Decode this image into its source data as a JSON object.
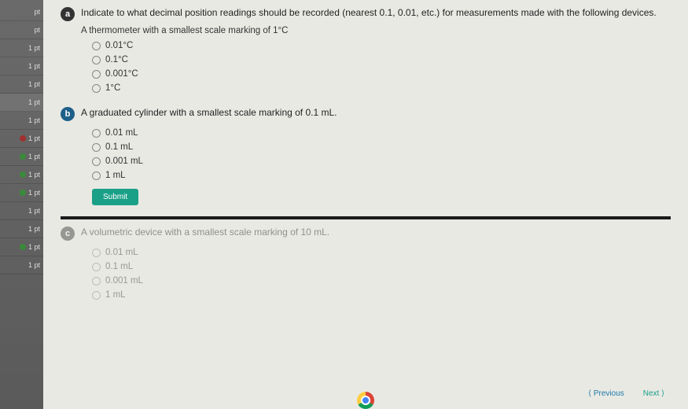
{
  "sidebar": {
    "items": [
      {
        "label": "pt"
      },
      {
        "label": "pt"
      },
      {
        "label": "1 pt"
      },
      {
        "label": "1 pt"
      },
      {
        "label": "1 pt"
      },
      {
        "label": "1 pt"
      },
      {
        "label": "1 pt"
      },
      {
        "label": "1 pt",
        "status": "red"
      },
      {
        "label": "1 pt",
        "status": "green"
      },
      {
        "label": "1 pt",
        "status": "green"
      },
      {
        "label": "1 pt",
        "status": "green"
      },
      {
        "label": "1 pt"
      },
      {
        "label": "1 pt"
      },
      {
        "label": "1 pt",
        "status": "green"
      },
      {
        "label": "1 pt"
      }
    ]
  },
  "partA": {
    "badge": "a",
    "prompt": "Indicate to what decimal position readings should be recorded (nearest 0.1, 0.01, etc.) for measurements made with the following devices.",
    "subprompt": "A thermometer with a smallest scale marking of 1°C",
    "options": [
      "0.01°C",
      "0.1°C",
      "0.001°C",
      "1°C"
    ]
  },
  "partB": {
    "badge": "b",
    "prompt": "A graduated cylinder with a smallest scale marking of 0.1 mL.",
    "options": [
      "0.01 mL",
      "0.1 mL",
      "0.001 mL",
      "1 mL"
    ],
    "submit": "Submit"
  },
  "partC": {
    "badge": "c",
    "prompt": "A volumetric device with a smallest scale marking of 10 mL.",
    "options": [
      "0.01 mL",
      "0.1 mL",
      "0.001 mL",
      "1 mL"
    ]
  },
  "nav": {
    "prev": "Previous",
    "next": "Next"
  },
  "colors": {
    "badge_dark": "#333333",
    "badge_blue": "#1e5f8a",
    "submit_bg": "#1ba088",
    "divider": "#1a1a1a",
    "background": "#e9e9e4"
  }
}
